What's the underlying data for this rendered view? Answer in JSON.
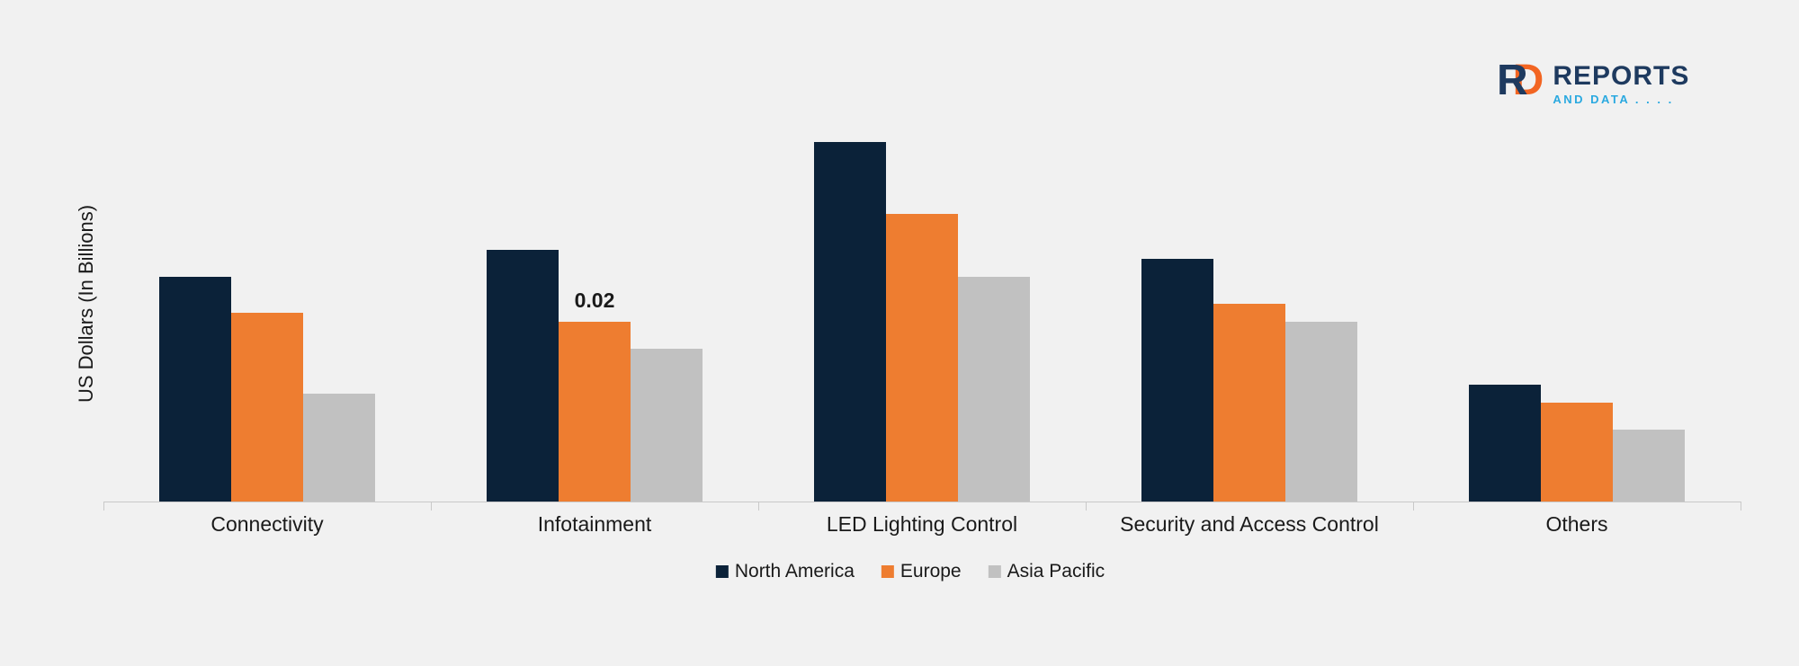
{
  "colors": {
    "background": "#f1f1f1",
    "axis_line": "#c9c9c9",
    "text": "#1a1a1a",
    "logo_navy": "#1e3a5f",
    "logo_orange": "#f26522",
    "logo_blue": "#2aa9e0"
  },
  "logo": {
    "icon_letter_1": "R",
    "icon_letter_2": "D",
    "title": "REPORTS",
    "subtitle": "AND DATA . . . ."
  },
  "chart_data": {
    "type": "bar",
    "title": "",
    "xlabel": "",
    "ylabel": "US Dollars (In Billions)",
    "categories": [
      "Connectivity",
      "Infotainment",
      "LED Lighting Control",
      "Security and Access Control",
      "Others"
    ],
    "series": [
      {
        "name": "North America",
        "color": "#0b2239",
        "values": [
          0.025,
          0.028,
          0.04,
          0.027,
          0.013
        ]
      },
      {
        "name": "Europe",
        "color": "#ee7d30",
        "values": [
          0.021,
          0.02,
          0.032,
          0.022,
          0.011
        ]
      },
      {
        "name": "Asia Pacific",
        "color": "#c1c1c1",
        "values": [
          0.012,
          0.017,
          0.025,
          0.02,
          0.008
        ]
      }
    ],
    "data_labels": [
      {
        "series": "Europe",
        "category": "Infotainment",
        "text": "0.02"
      }
    ],
    "ylim": [
      0,
      0.045
    ],
    "grid": false,
    "y_ticks_visible": false,
    "legend_position": "bottom"
  }
}
